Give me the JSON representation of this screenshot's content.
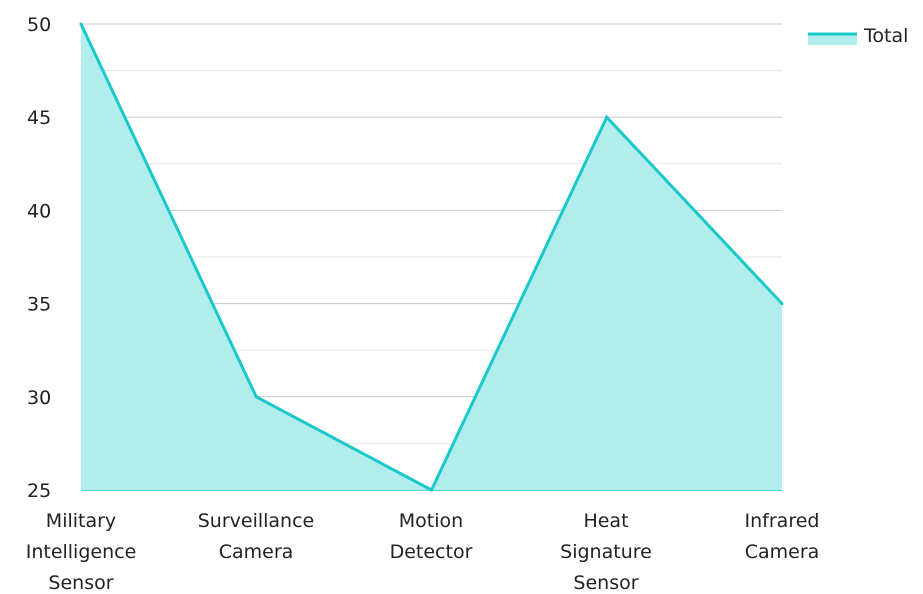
{
  "chart_data": {
    "type": "area",
    "categories": [
      [
        "Military",
        "Intelligence",
        "Sensor"
      ],
      [
        "Surveillance",
        "Camera"
      ],
      [
        "Motion",
        "Detector"
      ],
      [
        "Heat",
        "Signature",
        "Sensor"
      ],
      [
        "Infrared",
        "Camera"
      ]
    ],
    "series": [
      {
        "name": "Total",
        "values": [
          50,
          30,
          25,
          45,
          35
        ],
        "color": "#19c8c8",
        "fill": "#b2eded"
      }
    ],
    "ylim": [
      25,
      50
    ],
    "yticks": [
      "25",
      "30",
      "35",
      "40",
      "45",
      "50"
    ],
    "grid": true,
    "legend": "top-right"
  }
}
